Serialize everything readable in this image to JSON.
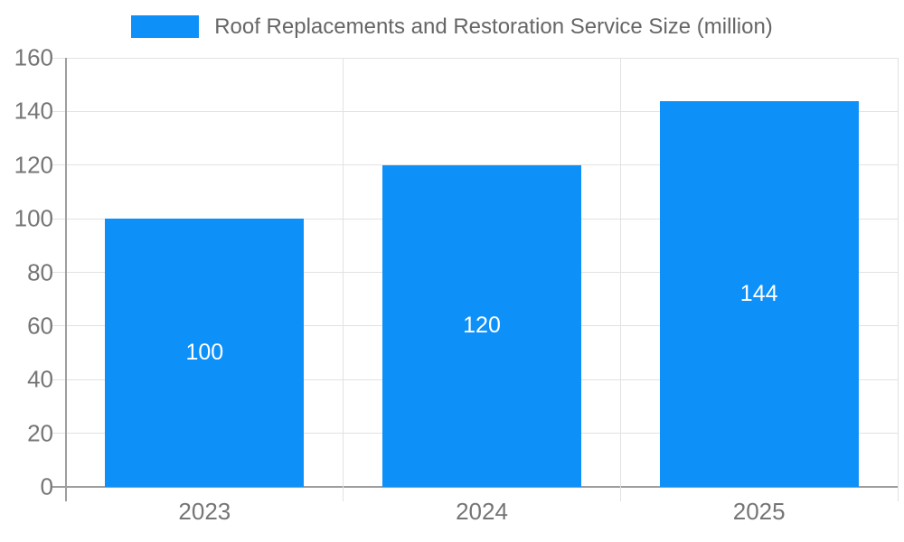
{
  "chart_data": {
    "type": "bar",
    "title": "Roof Replacements and Restoration Service Size (million)",
    "legend_position": "top",
    "categories": [
      "2023",
      "2024",
      "2025"
    ],
    "values": [
      100,
      120,
      144
    ],
    "data_labels": [
      "100",
      "120",
      "144"
    ],
    "xlabel": "",
    "ylabel": "",
    "ylim": [
      0,
      160
    ],
    "ytick_step": 20,
    "grid": true,
    "bar_color": "#0E90F9",
    "data_label_color": "#ffffff",
    "axis_color": "#9E9E9E",
    "grid_color": "#E2E2E2",
    "tick_label_color": "#757575",
    "legend_text_color": "#666666"
  }
}
